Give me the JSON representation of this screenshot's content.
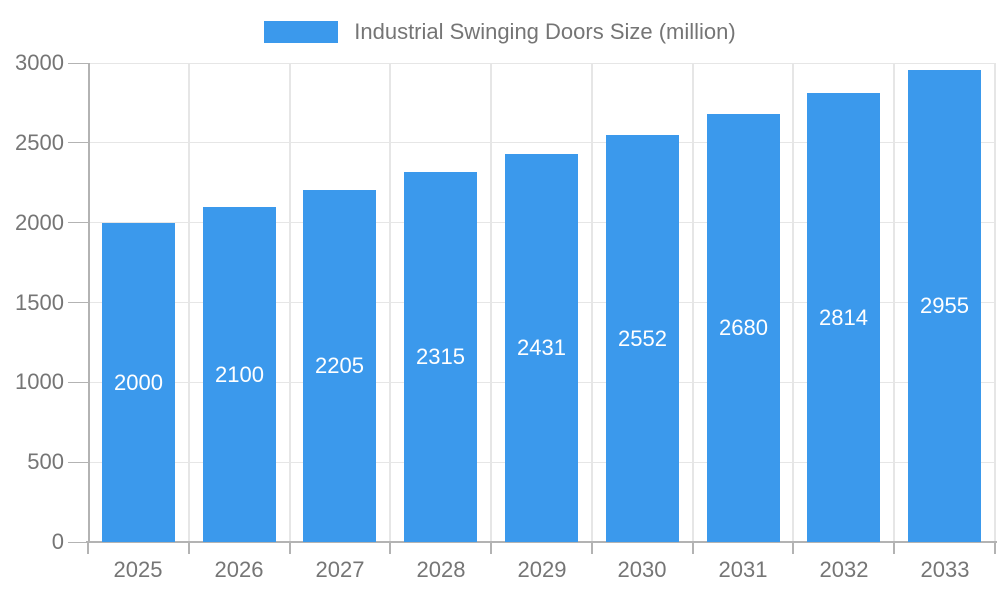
{
  "chart_data": {
    "type": "bar",
    "title": "",
    "legend": "Industrial Swinging Doors Size (million)",
    "legend_position": "top-center",
    "categories": [
      "2025",
      "2026",
      "2027",
      "2028",
      "2029",
      "2030",
      "2031",
      "2032",
      "2033"
    ],
    "values": [
      2000,
      2100,
      2205,
      2315,
      2431,
      2552,
      2680,
      2814,
      2955
    ],
    "xlabel": "",
    "ylabel": "",
    "ylim": [
      0,
      3000
    ],
    "yticks": [
      0,
      500,
      1000,
      1500,
      2000,
      2500,
      3000
    ],
    "grid": true,
    "bar_labels_visible": true,
    "colors": {
      "bar": "#3b99ec",
      "bar_label": "#ffffff",
      "axis_text": "#757575",
      "grid_line": "#e6e6e6",
      "axis_line": "#b3b3b3",
      "background": "#ffffff"
    }
  }
}
